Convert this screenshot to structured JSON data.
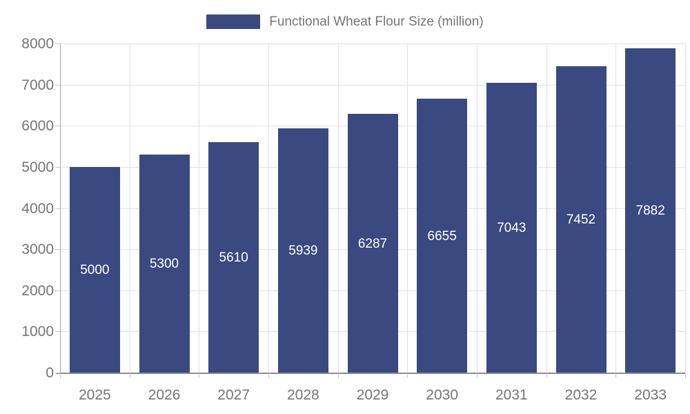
{
  "chart_data": {
    "type": "bar",
    "title": "Functional Wheat Flour Size (million)",
    "legend": [
      "Functional Wheat Flour Size (million)"
    ],
    "legend_position": "top",
    "categories": [
      "2025",
      "2026",
      "2027",
      "2028",
      "2029",
      "2030",
      "2031",
      "2032",
      "2033"
    ],
    "values": [
      5000,
      5300,
      5610,
      5939,
      6287,
      6655,
      7043,
      7452,
      7882
    ],
    "xlabel": "",
    "ylabel": "",
    "ylim": [
      0,
      8000
    ],
    "ytick_step": 1000,
    "ytick_labels": [
      "0",
      "1000",
      "2000",
      "3000",
      "4000",
      "5000",
      "6000",
      "7000",
      "8000"
    ],
    "grid": true,
    "colors": {
      "bar": "#3A4A80",
      "value_label": "#ffffff",
      "axis_text": "#757575",
      "legend_text": "#757575",
      "grid_line": "#e1e1e6",
      "tick_line": "#c9c9ce",
      "x_axis_line": "#8c8c8c",
      "y_axis_line": "#a8a8ad",
      "background": "#ffffff"
    }
  }
}
